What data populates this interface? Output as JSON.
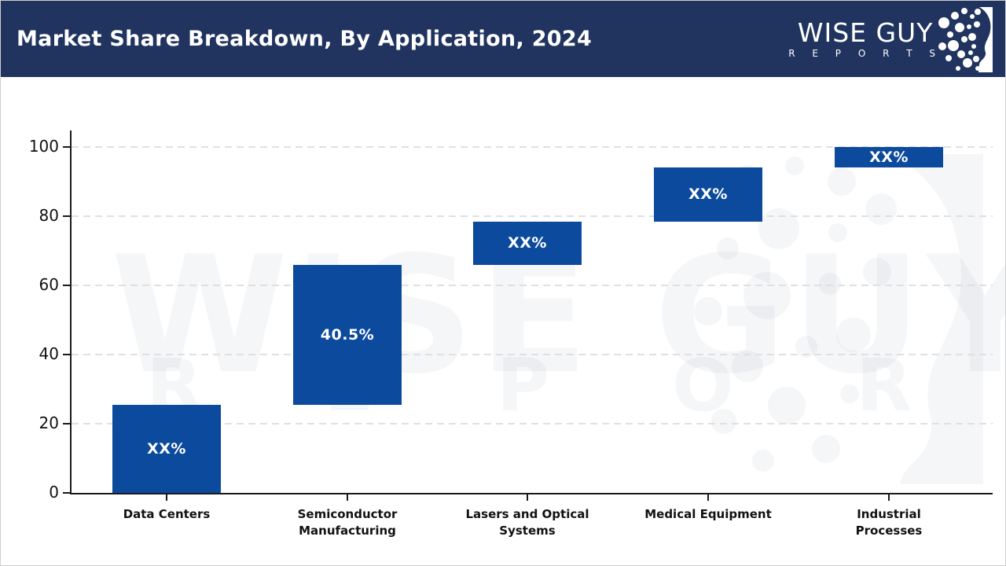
{
  "header": {
    "title": "Market Share Breakdown, By Application, 2024",
    "logo": {
      "name": "WISE GUY REPORTS",
      "line1": "WISE GUY",
      "line2": "R E P O R T S"
    }
  },
  "theme": {
    "header_bg": "#20345f",
    "bar_color": "#0c4a9d",
    "axis_color": "#1a1a1a",
    "grid_color": "#e0e0e0",
    "watermark_color": "rgba(30,40,90,0.045)"
  },
  "watermark": {
    "line1": "WISE GUY",
    "line2": "R E P O R T S"
  },
  "chart_data": {
    "type": "bar",
    "subtype": "floating-waterfall",
    "title": "Market Share Breakdown, By Application, 2024",
    "xlabel": "",
    "ylabel": "",
    "ylim": [
      0,
      105
    ],
    "yticks": [
      0,
      20,
      40,
      60,
      80,
      100
    ],
    "grid": "horizontal-dashed",
    "legend": "none",
    "categories": [
      "Data Centers",
      "Semiconductor Manufacturing",
      "Lasers and Optical Systems",
      "Medical Equipment",
      "Industrial Processes"
    ],
    "category_label_lines": [
      [
        "Data Centers"
      ],
      [
        "Semiconductor",
        "Manufacturing"
      ],
      [
        "Lasers and Optical",
        "Systems"
      ],
      [
        "Medical Equipment"
      ],
      [
        "Industrial",
        "Processes"
      ]
    ],
    "segments": [
      {
        "category": "Data Centers",
        "start": 0,
        "end": 25.5,
        "label": "XX%"
      },
      {
        "category": "Semiconductor Manufacturing",
        "start": 25.5,
        "end": 66,
        "label": "40.5%"
      },
      {
        "category": "Lasers and Optical Systems",
        "start": 66,
        "end": 78.5,
        "label": "XX%"
      },
      {
        "category": "Medical Equipment",
        "start": 78.5,
        "end": 94,
        "label": "XX%"
      },
      {
        "category": "Industrial Processes",
        "start": 94,
        "end": 100,
        "label": "XX%"
      }
    ]
  }
}
